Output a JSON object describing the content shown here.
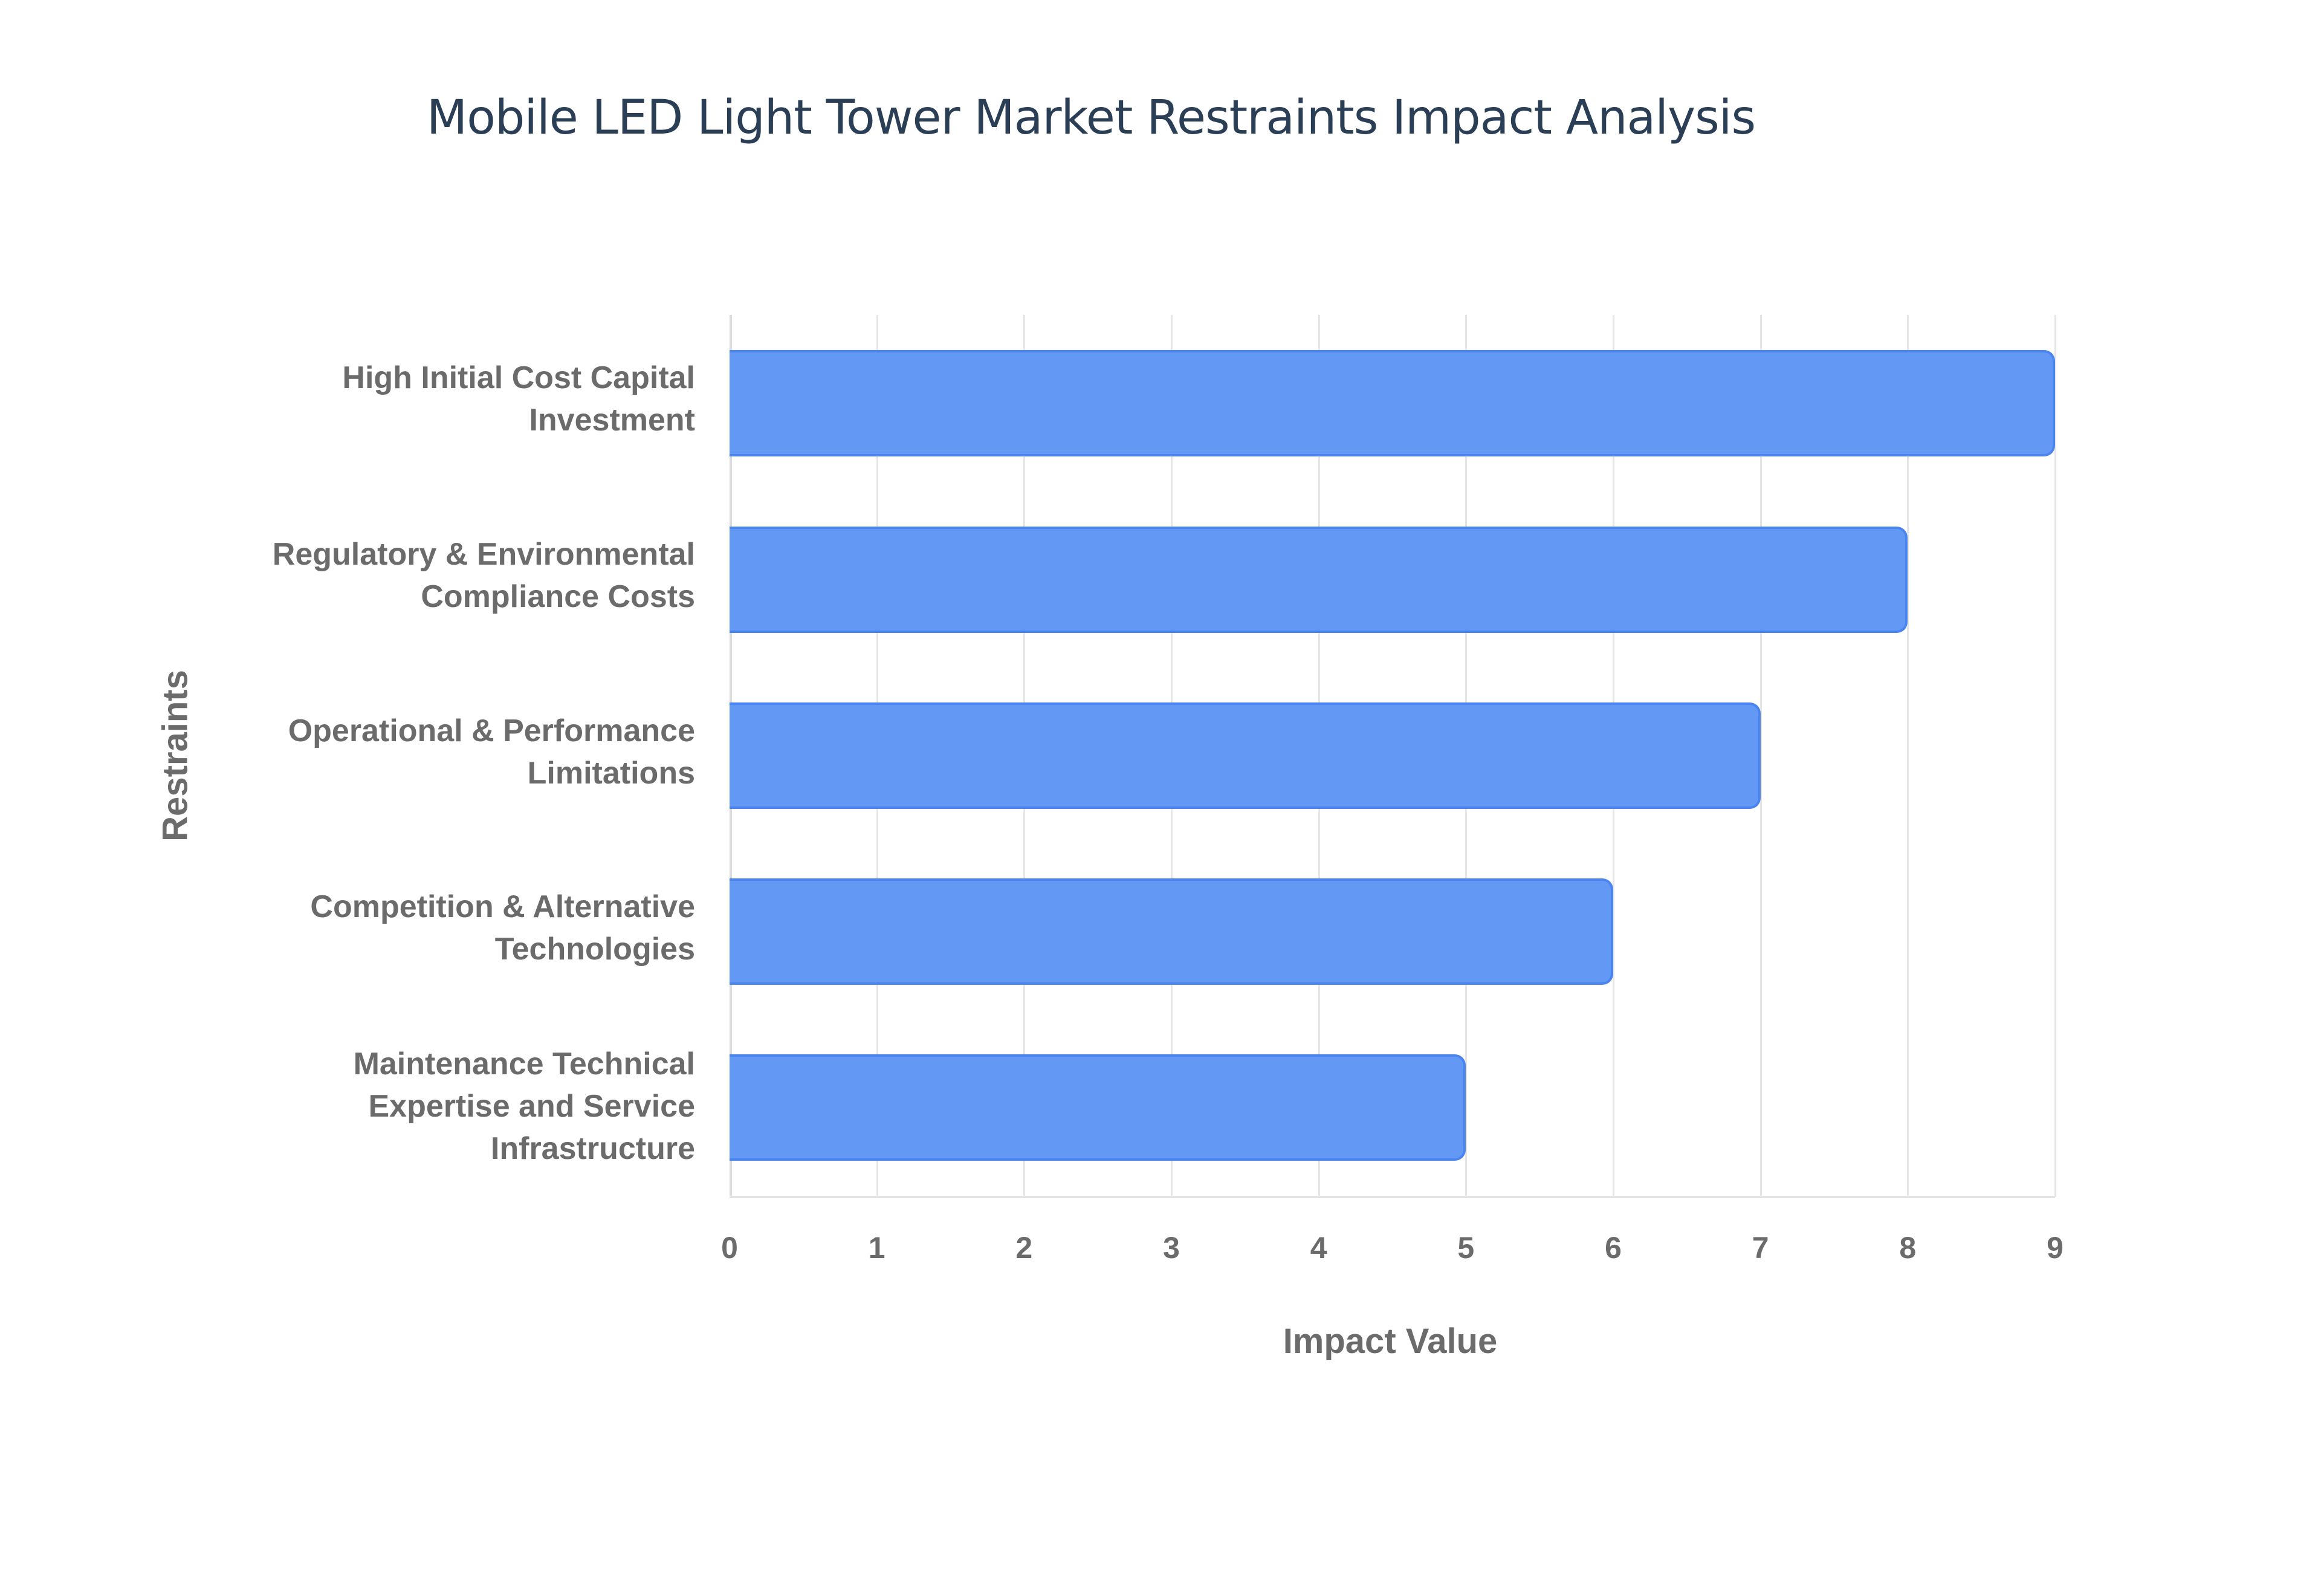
{
  "chart_data": {
    "type": "bar",
    "orientation": "horizontal",
    "title": "Mobile LED Light Tower Market Restraints Impact Analysis",
    "xlabel": "Impact Value",
    "ylabel": "Restraints",
    "categories": [
      "High Initial Cost Capital Investment",
      "Regulatory & Environmental Compliance Costs",
      "Operational & Performance Limitations",
      "Competition & Alternative Technologies",
      "Maintenance Technical Expertise and Service Infrastructure"
    ],
    "values": [
      9,
      8,
      7,
      6,
      5
    ],
    "xlim": [
      0,
      9
    ],
    "xticks": [
      "0",
      "1",
      "2",
      "3",
      "4",
      "5",
      "6",
      "7",
      "8",
      "9"
    ],
    "grid": true,
    "legend": null,
    "bar_color": "#6399f4"
  },
  "labels": {
    "title": "Mobile LED Light Tower Market Restraints Impact Analysis",
    "xaxis_title": "Impact Value",
    "yaxis_title": "Restraints",
    "categories_wrapped": [
      "High Initial Cost Capital\nInvestment",
      "Regulatory & Environmental\nCompliance Costs",
      "Operational & Performance\nLimitations",
      "Competition & Alternative\nTechnologies",
      "Maintenance Technical\nExpertise and Service\nInfrastructure"
    ],
    "ticks": [
      "0",
      "1",
      "2",
      "3",
      "4",
      "5",
      "6",
      "7",
      "8",
      "9"
    ]
  }
}
